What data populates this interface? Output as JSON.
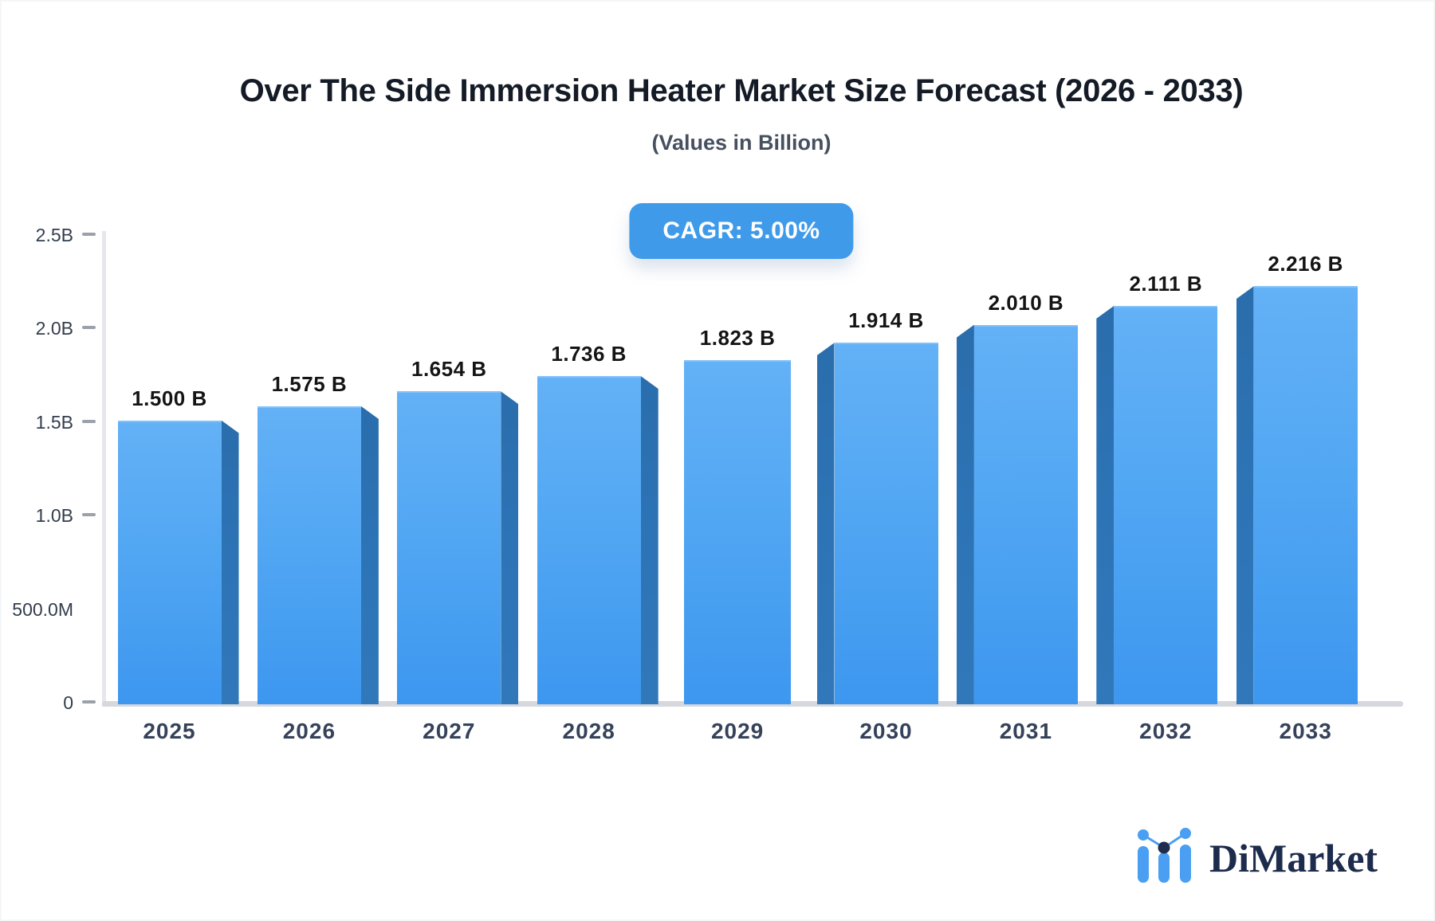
{
  "chart_data": {
    "type": "bar",
    "title": "Over The Side Immersion Heater Market Size Forecast (2026 - 2033)",
    "subtitle": "(Values in Billion)",
    "annotation": "CAGR: 5.00%",
    "categories": [
      "2025",
      "2026",
      "2027",
      "2028",
      "2029",
      "2030",
      "2031",
      "2032",
      "2033"
    ],
    "values": [
      1.5,
      1.575,
      1.654,
      1.736,
      1.823,
      1.914,
      2.01,
      2.111,
      2.216
    ],
    "bar_labels": [
      "1.500 B",
      "1.575 B",
      "1.654 B",
      "1.736 B",
      "1.823 B",
      "1.914 B",
      "2.010 B",
      "2.111 B",
      "2.216 B"
    ],
    "unit": "Billion",
    "ylim": [
      0,
      2.5
    ],
    "y_ticks": [
      {
        "label": "2.5B",
        "value": 2.5,
        "dash": true
      },
      {
        "label": "2.0B",
        "value": 2.0,
        "dash": true
      },
      {
        "label": "1.5B",
        "value": 1.5,
        "dash": true
      },
      {
        "label": "1.0B",
        "value": 1.0,
        "dash": true
      },
      {
        "label": "500.0M",
        "value": 0.5,
        "dash": false
      },
      {
        "label": "0",
        "value": 0.0,
        "dash": true
      }
    ],
    "grid": false,
    "legend": false,
    "colors": {
      "bar_face": "#4ea5f3",
      "bar_side": "#2d74b6",
      "badge": "#3f9bea",
      "axis_line": "#e6e7ec",
      "baseline": "#d7d8dd",
      "tick_dash": "#9ba1ab",
      "title_text": "#141b26",
      "subtitle_text": "#46505e",
      "axis_label_text": "#333d4d",
      "category_text": "#35425a",
      "value_text": "#141414",
      "brand_navy": "#1d2c4d",
      "brand_blue": "#4a9ff2"
    }
  },
  "brand": {
    "name": "DiMarket"
  }
}
